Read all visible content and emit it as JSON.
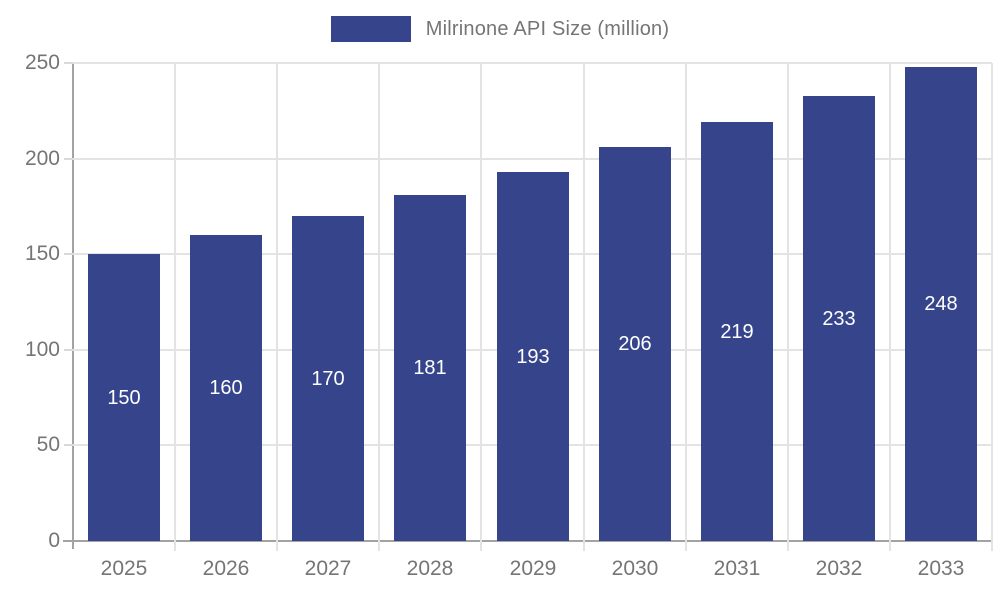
{
  "chart_data": {
    "type": "bar",
    "title": "Milrinone API Size (million)",
    "categories": [
      "2025",
      "2026",
      "2027",
      "2028",
      "2029",
      "2030",
      "2031",
      "2032",
      "2033"
    ],
    "values": [
      150,
      160,
      170,
      181,
      193,
      206,
      219,
      233,
      248
    ],
    "xlabel": "",
    "ylabel": "",
    "ylim": [
      0,
      250
    ],
    "yticks": [
      0,
      50,
      100,
      150,
      200,
      250
    ],
    "grid": true,
    "legend_position": "top-center",
    "bar_labels_inside": true,
    "colors": {
      "bar": "#36458b",
      "bar_value_text": "#ffffff",
      "axis_text": "#757575",
      "gridline": "#e3e3e3",
      "axis_line": "#a3a3a3",
      "background": "#ffffff"
    }
  },
  "legend": {
    "label": "Milrinone API Size (million)"
  }
}
